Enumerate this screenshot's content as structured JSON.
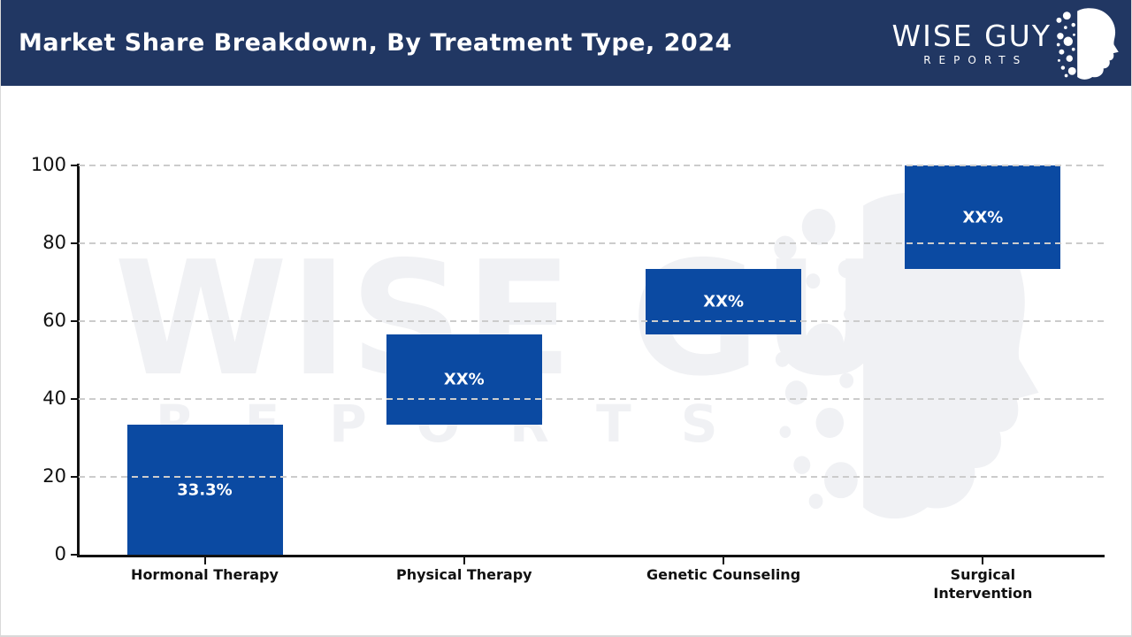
{
  "header": {
    "title": "Market Share Breakdown, By Treatment Type, 2024",
    "logo": {
      "line1": "WISE GUY",
      "line2": "REPORTS"
    }
  },
  "watermark": {
    "line1": "WISE GUY",
    "line2": "REPORTS"
  },
  "chart_data": {
    "type": "bar",
    "variant": "waterfall",
    "title": "Market Share Breakdown, By Treatment Type, 2024",
    "categories": [
      "Hormonal Therapy",
      "Physical Therapy",
      "Genetic Counseling",
      "Surgical\nIntervention"
    ],
    "bars": [
      {
        "category": "Hormonal Therapy",
        "start": 0,
        "end": 33.3,
        "label": "33.3%"
      },
      {
        "category": "Physical Therapy",
        "start": 33.3,
        "end": 56.6,
        "label": "XX%"
      },
      {
        "category": "Genetic Counseling",
        "start": 56.6,
        "end": 73.3,
        "label": "XX%"
      },
      {
        "category": "Surgical Intervention",
        "start": 73.3,
        "end": 100,
        "label": "XX%"
      }
    ],
    "xlabel": "",
    "ylabel": "",
    "ylim": [
      0,
      100
    ],
    "yticks": [
      0,
      20,
      40,
      60,
      80,
      100
    ],
    "grid": "horizontal-dashed, drawn over bars",
    "legend": "none"
  },
  "colors": {
    "header_bg": "#213763",
    "bar": "#0b4aa2",
    "grid": "#cccccc",
    "axis": "#111111",
    "watermark": "#f0f1f4",
    "border": "#d9d9d9"
  }
}
